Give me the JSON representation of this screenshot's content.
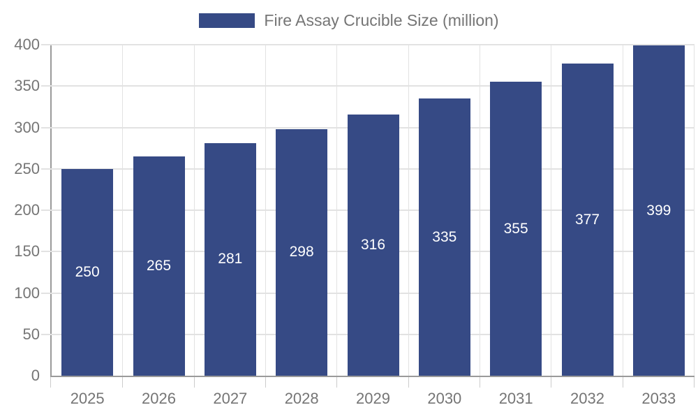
{
  "legend": {
    "label": "Fire Assay Crucible Size (million)"
  },
  "colors": {
    "bar": "#364a85",
    "axis": "#9a9a9a",
    "gridline": "#e2e2e2",
    "tick": "#cccccc",
    "axis_label": "#757575",
    "bar_label": "#ffffff",
    "background": "#ffffff"
  },
  "chart_data": {
    "type": "bar",
    "title": "Fire Assay Crucible Size (million)",
    "categories": [
      "2025",
      "2026",
      "2027",
      "2028",
      "2029",
      "2030",
      "2031",
      "2032",
      "2033"
    ],
    "values": [
      250,
      265,
      281,
      298,
      316,
      335,
      355,
      377,
      399
    ],
    "xlabel": "",
    "ylabel": "",
    "ylim": [
      0,
      400
    ],
    "ytick_step": 50,
    "grid": true,
    "legend_position": "top",
    "value_labels": "inside-center"
  }
}
